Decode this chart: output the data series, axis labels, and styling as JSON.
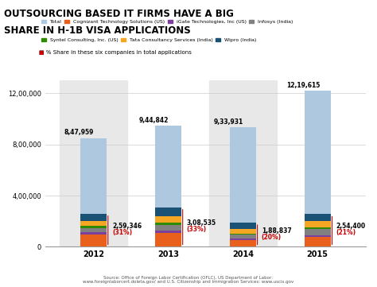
{
  "title_line1": "OUTSOURCING BASED IT FIRMS HAVE A BIG",
  "title_line2": "SHARE IN H-1B VISA APPLICATIONS",
  "years": [
    2012,
    2013,
    2014,
    2015
  ],
  "total_values": [
    847959,
    944842,
    933931,
    1219615
  ],
  "total_labels": [
    "8,47,959",
    "9,44,842",
    "9,33,931",
    "12,19,615"
  ],
  "six_company_values": [
    259346,
    308535,
    188837,
    254400
  ],
  "six_company_labels": [
    "2,59,346",
    "3,08,535",
    "1,88,837",
    "2,54,400"
  ],
  "six_company_pct": [
    "31%",
    "33%",
    "20%",
    "21%"
  ],
  "companies": {
    "Cognizant Technology Solutions (US)": {
      "color": "#e8601c",
      "values": [
        95000,
        110000,
        52000,
        75000
      ]
    },
    "iGate Technologies, Inc (US)": {
      "color": "#7b3f9e",
      "values": [
        18000,
        20000,
        12000,
        15000
      ]
    },
    "Infosys (India)": {
      "color": "#808080",
      "values": [
        35000,
        40000,
        30000,
        50000
      ]
    },
    "Syntel Consulting, Inc. (US)": {
      "color": "#2e8b00",
      "values": [
        15000,
        18000,
        10000,
        14000
      ]
    },
    "Tata Consultancy Services (India)": {
      "color": "#f5a623",
      "values": [
        40000,
        50000,
        35000,
        45000
      ]
    },
    "Wipro (India)": {
      "color": "#1a5276",
      "values": [
        56346,
        70535,
        49837,
        55400
      ]
    }
  },
  "total_bar_color": "#aec8e0",
  "bg_color_odd": "#e8e8e8",
  "bg_color_even": "#ffffff",
  "source_text": "Source: Office of Foreign Labor Certification (OFLC), US Department of Labor:\nwww.foreignlaborcert.doleta.gov/ and U.S. Citizenship and Immigration Services: www.uscis.gov",
  "subtitle": "% Share in these six companies in total applications",
  "ylim": [
    0,
    1300000
  ],
  "yticks": [
    0,
    400000,
    800000,
    1200000
  ],
  "ytick_labels": [
    "0",
    "4,00,000",
    "8,00,000",
    "12,00,000"
  ]
}
